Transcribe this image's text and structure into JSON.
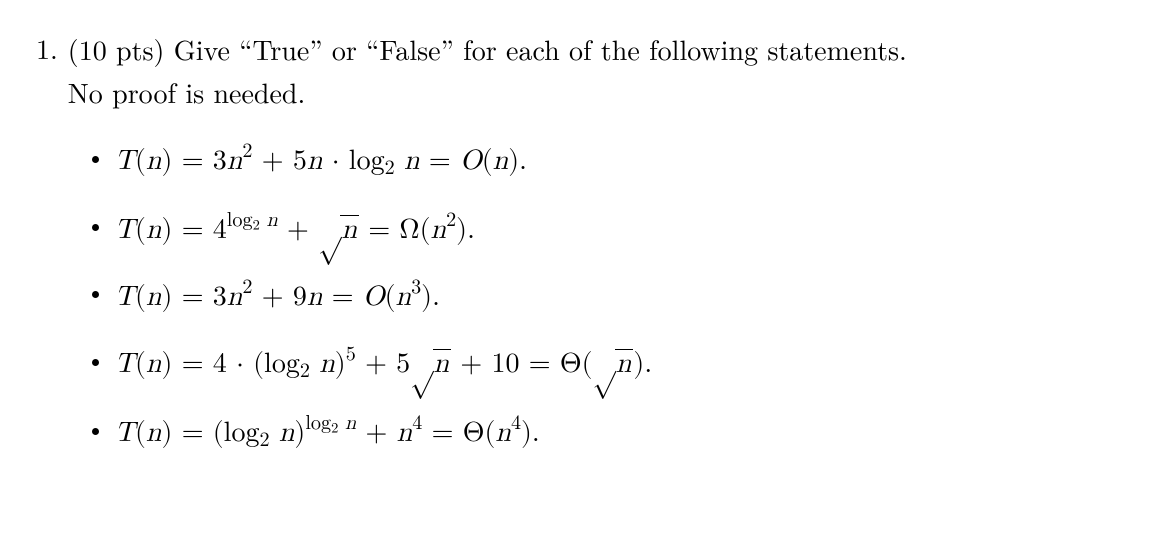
{
  "problem": {
    "number": "1.",
    "points": "(10 pts)",
    "prompt_part1": " Give “True” or “False” for each of the following statements.",
    "prompt_part2": "No proof is needed.",
    "items": [
      {
        "lhs_fn": "T",
        "lhs_arg": "n",
        "html": "3<i>n</i><sup>2</sup> + 5<i>n</i> · log<sub>2</sub> <i>n</i> = <i>O</i>(<i>n</i>)."
      },
      {
        "lhs_fn": "T",
        "lhs_arg": "n",
        "html": "4<sup>log<sub>2</sub> <i>n</i></sup> + <span class=\"sqrt\">√<span class=\"over\">n</span></span> = Ω(<i>n</i><sup>2</sup>)."
      },
      {
        "lhs_fn": "T",
        "lhs_arg": "n",
        "html": "3<i>n</i><sup>2</sup> + 9<i>n</i> = <i>O</i>(<i>n</i><sup>3</sup>)."
      },
      {
        "lhs_fn": "T",
        "lhs_arg": "n",
        "html": "4 · (log<sub>2</sub> <i>n</i>)<sup>5</sup> + 5<span class=\"sqrt\">√<span class=\"over\">n</span></span> + 10 = Θ(<span class=\"sqrt\">√<span class=\"over\">n</span></span>)."
      },
      {
        "lhs_fn": "T",
        "lhs_arg": "n",
        "html": "(log<sub>2</sub> <i>n</i>)<sup>log<sub>2</sub> <i>n</i></sup> + <i>n</i><sup>4</sup> = Θ(<i>n</i><sup>4</sup>)."
      }
    ]
  },
  "style": {
    "font_size_pt": 21,
    "background_color": "#ffffff",
    "text_color": "#000000",
    "bullet_color": "#000000",
    "line_spacing": 1.55
  }
}
